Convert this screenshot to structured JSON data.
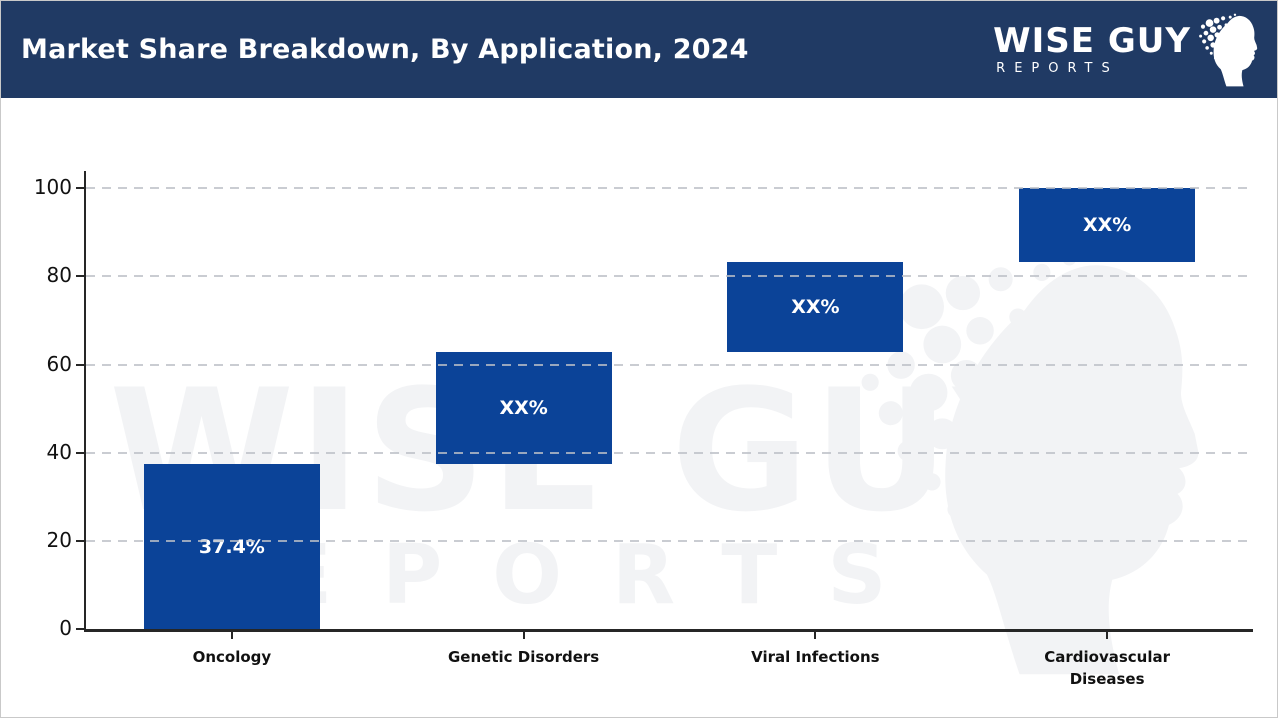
{
  "header": {
    "title": "Market Share Breakdown, By Application, 2024",
    "logo": {
      "line1": "WISE GUY",
      "line2": "REPORTS"
    }
  },
  "watermark": {
    "line1": "WISE GUY",
    "line2": "REPORTS"
  },
  "colors": {
    "header_bg": "#203a64",
    "bar": "#0b4398",
    "axis": "#262626",
    "grid": "#c9cdd4",
    "watermark": "#f2f3f5",
    "title_text": "#ffffff",
    "tick_text": "#111111"
  },
  "chart_data": {
    "type": "bar",
    "subtype": "waterfall",
    "title": "Market Share Breakdown, By Application, 2024",
    "xlabel": "",
    "ylabel": "",
    "categories": [
      "Oncology",
      "Genetic Disorders",
      "Viral Infections",
      "Cardiovascular Diseases"
    ],
    "segments": [
      {
        "category": "Oncology",
        "start": 0,
        "end": 37.4,
        "label": "37.4%"
      },
      {
        "category": "Genetic Disorders",
        "start": 37.4,
        "end": 62.8,
        "label": "XX%"
      },
      {
        "category": "Viral Infections",
        "start": 62.8,
        "end": 83.3,
        "label": "XX%"
      },
      {
        "category": "Cardiovascular Diseases",
        "start": 83.3,
        "end": 100,
        "label": "XX%"
      }
    ],
    "yticks": [
      0,
      20,
      40,
      60,
      80,
      100
    ],
    "ylim": [
      0,
      103.9
    ],
    "grid": "horizontal-dashed-over-bars",
    "legend": "none",
    "bar_color": "#0b4398"
  }
}
